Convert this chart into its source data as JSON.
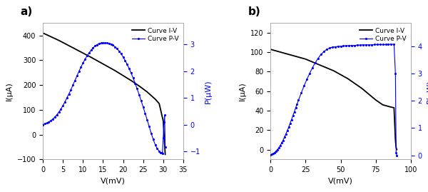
{
  "panel_a": {
    "label": "a)",
    "IV": {
      "V_points": [
        0,
        2,
        4,
        6,
        8,
        10,
        12,
        14,
        16,
        18,
        20,
        22,
        24,
        26,
        28,
        29,
        30,
        30.5
      ],
      "I_points": [
        410,
        395,
        380,
        363,
        346,
        329,
        312,
        294,
        276,
        258,
        238,
        218,
        196,
        172,
        143,
        125,
        55,
        -80
      ],
      "color": "black",
      "legend": "Curve I-V",
      "linewidth": 1.3
    },
    "PV": {
      "V_points": [
        0,
        0.5,
        1,
        1.5,
        2,
        2.5,
        3,
        3.5,
        4,
        4.5,
        5,
        5.5,
        6,
        6.5,
        7,
        7.5,
        8,
        8.5,
        9,
        9.5,
        10,
        10.5,
        11,
        11.5,
        12,
        12.5,
        13,
        13.5,
        14,
        14.5,
        15,
        15.5,
        16,
        16.5,
        17,
        17.5,
        18,
        18.5,
        19,
        19.5,
        20,
        20.5,
        21,
        21.5,
        22,
        22.5,
        23,
        23.5,
        24,
        24.5,
        25,
        25.5,
        26,
        26.5,
        27,
        27.5,
        28,
        28.5,
        29,
        29.3,
        29.6,
        29.8,
        30.0,
        30.2,
        30.35,
        30.5
      ],
      "P_points": [
        0.0,
        0.03,
        0.06,
        0.1,
        0.15,
        0.21,
        0.28,
        0.37,
        0.47,
        0.58,
        0.71,
        0.85,
        1.0,
        1.15,
        1.31,
        1.48,
        1.65,
        1.82,
        1.99,
        2.15,
        2.3,
        2.44,
        2.57,
        2.68,
        2.78,
        2.87,
        2.94,
        2.99,
        3.03,
        3.05,
        3.06,
        3.06,
        3.05,
        3.04,
        3.01,
        2.97,
        2.91,
        2.84,
        2.75,
        2.65,
        2.53,
        2.4,
        2.26,
        2.1,
        1.93,
        1.74,
        1.55,
        1.34,
        1.12,
        0.89,
        0.66,
        0.42,
        0.18,
        -0.07,
        -0.32,
        -0.55,
        -0.75,
        -0.9,
        -1.0,
        -1.04,
        -1.06,
        -1.07,
        -0.5,
        0.1,
        0.35,
        -0.85
      ],
      "color": "blue",
      "legend": "Curve P-V",
      "marker": ".",
      "markersize": 2.5,
      "linewidth": 0.8
    },
    "xlabel": "V(mV)",
    "ylabel_left": "I(μA)",
    "ylabel_right": "P(μW)",
    "xlim": [
      0,
      35
    ],
    "ylim_left": [
      -100,
      450
    ],
    "ylim_right": [
      -1.3,
      3.8
    ],
    "xticks": [
      0,
      5,
      10,
      15,
      20,
      25,
      30,
      35
    ],
    "yticks_left": [
      -100,
      0,
      100,
      200,
      300,
      400
    ],
    "yticks_right": [
      -1,
      0,
      1,
      2,
      3
    ]
  },
  "panel_b": {
    "label": "b)",
    "IV": {
      "V_points": [
        0,
        5,
        10,
        15,
        20,
        25,
        30,
        35,
        40,
        45,
        50,
        55,
        60,
        65,
        70,
        75,
        80,
        85,
        88,
        89,
        89.5,
        90
      ],
      "I_points": [
        103,
        101,
        99,
        97,
        95,
        93,
        90,
        87,
        84,
        81,
        77,
        73,
        68,
        63,
        57,
        51,
        46,
        44,
        43,
        10,
        2,
        0
      ],
      "color": "black",
      "legend": "Curve I-V",
      "linewidth": 1.3
    },
    "PV": {
      "V_points": [
        0,
        1,
        2,
        3,
        4,
        5,
        6,
        7,
        8,
        9,
        10,
        11,
        12,
        13,
        14,
        15,
        16,
        17,
        18,
        19,
        20,
        22,
        24,
        26,
        28,
        30,
        32,
        34,
        36,
        38,
        40,
        42,
        44,
        46,
        48,
        50,
        52,
        54,
        56,
        58,
        60,
        62,
        64,
        66,
        68,
        70,
        72,
        74,
        76,
        78,
        80,
        82,
        84,
        86,
        88,
        89,
        89.5,
        90
      ],
      "P_points": [
        0.01,
        0.03,
        0.06,
        0.1,
        0.15,
        0.21,
        0.28,
        0.36,
        0.45,
        0.55,
        0.66,
        0.78,
        0.9,
        1.03,
        1.17,
        1.31,
        1.45,
        1.59,
        1.74,
        1.88,
        2.02,
        2.29,
        2.55,
        2.79,
        3.01,
        3.22,
        3.4,
        3.56,
        3.7,
        3.8,
        3.88,
        3.93,
        3.96,
        3.98,
        3.99,
        4.0,
        4.01,
        4.02,
        4.02,
        4.03,
        4.03,
        4.04,
        4.04,
        4.05,
        4.05,
        4.05,
        4.05,
        4.06,
        4.06,
        4.06,
        4.06,
        4.06,
        4.07,
        4.07,
        4.07,
        3.0,
        0.1,
        0.0
      ],
      "color": "blue",
      "legend": "Curve P-V",
      "marker": ".",
      "markersize": 2.5,
      "linewidth": 0.8
    },
    "xlabel": "V(mV)",
    "ylabel_left": "I(μA)",
    "ylabel_right": "P(μW)",
    "xlim": [
      0,
      100
    ],
    "ylim_left": [
      -10,
      130
    ],
    "ylim_right": [
      -0.15,
      4.85
    ],
    "xticks": [
      0,
      25,
      50,
      75,
      100
    ],
    "yticks_left": [
      0,
      20,
      40,
      60,
      80,
      100,
      120
    ],
    "yticks_right": [
      0,
      1,
      2,
      3,
      4
    ]
  },
  "fig_bg": "#ffffff",
  "axes_bg": "#ffffff"
}
